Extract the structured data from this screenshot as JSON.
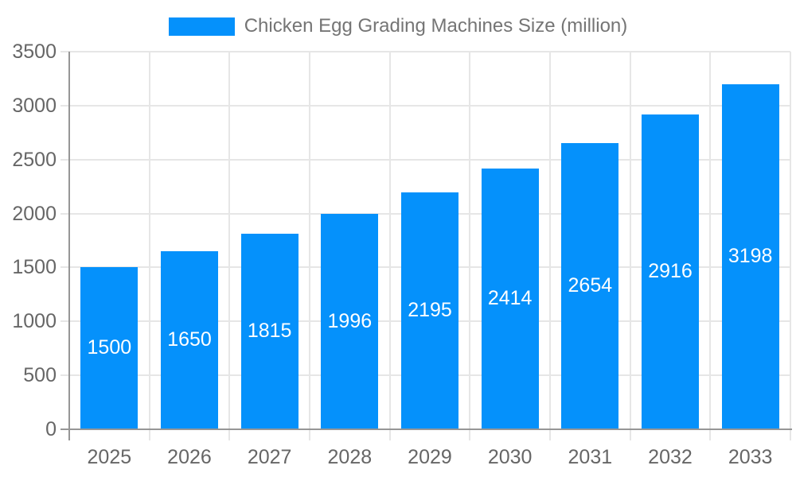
{
  "chart_data": {
    "type": "bar",
    "title": "Chicken Egg Grading Machines Size (million)",
    "categories": [
      "2025",
      "2026",
      "2027",
      "2028",
      "2029",
      "2030",
      "2031",
      "2032",
      "2033"
    ],
    "series": [
      {
        "name": "Chicken Egg Grading Machines Size (million)",
        "values": [
          1500,
          1650,
          1815,
          1996,
          2195,
          2414,
          2654,
          2916,
          3198
        ]
      }
    ],
    "xlabel": "",
    "ylabel": "",
    "ylim": [
      0,
      3500
    ],
    "yticks": [
      0,
      500,
      1000,
      1500,
      2000,
      2500,
      3000,
      3500
    ],
    "grid": true,
    "legend_position": "top",
    "data_labels": {
      "position": "center",
      "color": "#FFFFFF"
    },
    "colors": {
      "bar": "#0591FB",
      "grid_line": "#E6E6E6",
      "axis_line": "#969696",
      "tick_text": "#666666",
      "legend_text": "#757575",
      "background": "#FFFFFF"
    }
  }
}
